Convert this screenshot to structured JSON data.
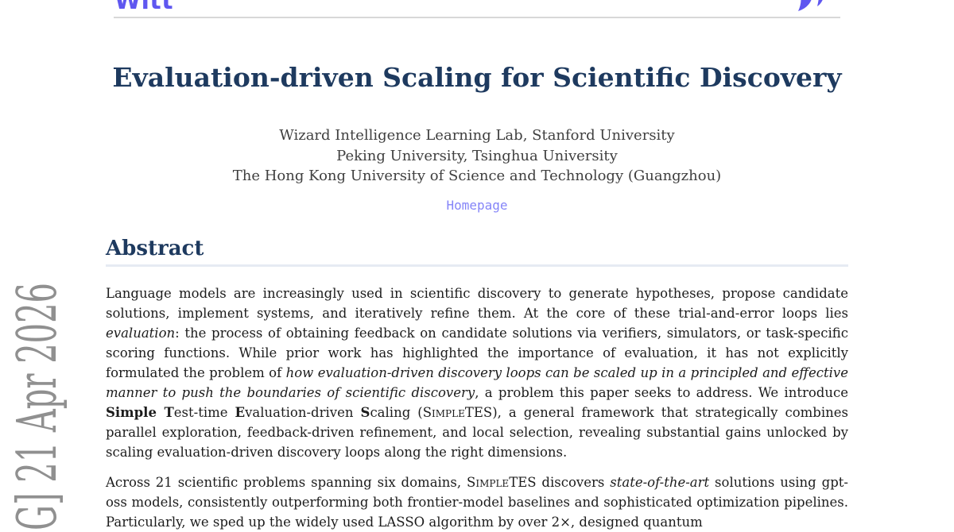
{
  "colors": {
    "accent": "#5f57f0",
    "link": "#8585f8",
    "heading": "#1e3a5f",
    "body-text": "#1c1c1c",
    "affil": "#3f3f3f",
    "watermark": "#909090",
    "header-rule": "#d8d8d8",
    "abstract-rule": "#e6ebf3"
  },
  "header": {
    "logo_text": "Witt",
    "icon_name": "quote-mark-icon"
  },
  "watermark": {
    "text": "G] 21 Apr 2026"
  },
  "title": "Evaluation-driven Scaling for Scientific Discovery",
  "affiliations": [
    "Wizard Intelligence Learning Lab, Stanford University",
    "Peking University, Tsinghua University",
    "The Hong Kong University of Science and Technology (Guangzhou)"
  ],
  "links": {
    "homepage_label": "Homepage"
  },
  "abstract": {
    "heading": "Abstract",
    "paragraphs": [
      [
        {
          "t": "Language models are increasingly used in scientific discovery to generate hypotheses, propose candidate solutions, implement systems, and iteratively refine them. At the core of these trial-and-error loops lies "
        },
        {
          "t": "evaluation",
          "s": "i"
        },
        {
          "t": ": the process of obtaining feedback on candidate solutions via verifiers, simulators, or task-specific scoring functions. While prior work has highlighted the importance of evaluation, it has not explicitly formulated the problem of "
        },
        {
          "t": "how evaluation-driven discovery loops can be scaled up in a principled and effective manner to push the boundaries of scientific discovery",
          "s": "i"
        },
        {
          "t": ", a problem this paper seeks to address. We introduce "
        },
        {
          "t": "Simple T",
          "s": "b"
        },
        {
          "t": "est-time "
        },
        {
          "t": "E",
          "s": "b"
        },
        {
          "t": "valuation-driven "
        },
        {
          "t": "S",
          "s": "b"
        },
        {
          "t": "caling ("
        },
        {
          "t": "Simple",
          "s": "sc"
        },
        {
          "t": "TES), a general framework that strategically combines parallel exploration, feedback-driven refinement, and local selection, revealing substantial gains unlocked by scaling evaluation-driven discovery loops along the right dimensions."
        }
      ],
      [
        {
          "t": "Across 21 scientific problems spanning six domains, "
        },
        {
          "t": "Simple",
          "s": "sc"
        },
        {
          "t": "TES discovers "
        },
        {
          "t": "state-of-the-art",
          "s": "i"
        },
        {
          "t": " solutions using gpt-oss models, consistently outperforming both frontier-model baselines and sophisticated optimization pipelines. Particularly, we sped up the widely used LASSO algorithm by over 2×, designed quantum"
        }
      ]
    ]
  }
}
